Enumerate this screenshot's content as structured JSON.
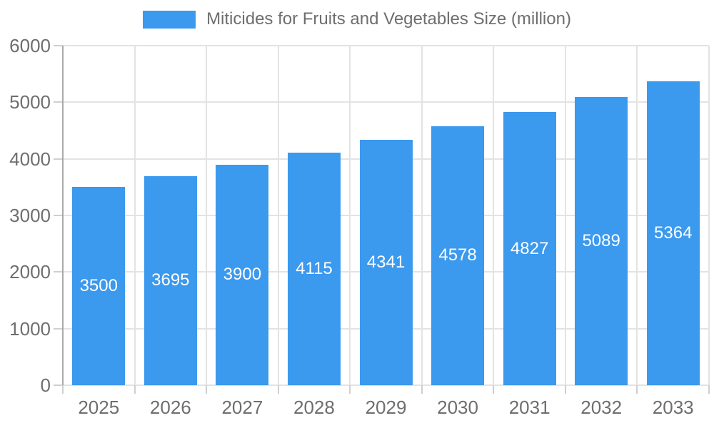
{
  "chart_data": {
    "type": "bar",
    "title": "Miticides for Fruits and Vegetables Size (million)",
    "legend_position": "top-center",
    "categories": [
      "2025",
      "2026",
      "2027",
      "2028",
      "2029",
      "2030",
      "2031",
      "2032",
      "2033"
    ],
    "values": [
      3500,
      3695,
      3900,
      4115,
      4341,
      4578,
      4827,
      5089,
      5364
    ],
    "series": [
      {
        "name": "Miticides for Fruits and Vegetables Size (million)",
        "values": [
          3500,
          3695,
          3900,
          4115,
          4341,
          4578,
          4827,
          5089,
          5364
        ]
      }
    ],
    "xlabel": "",
    "ylabel": "",
    "ylim": [
      0,
      6000
    ],
    "y_ticks": [
      0,
      1000,
      2000,
      3000,
      4000,
      5000,
      6000
    ],
    "grid": true,
    "bar_labels_inside": true,
    "colors": {
      "bar": "#3B99EE",
      "bar_label": "#FFFFFF",
      "axis_text": "#6E6E6E",
      "legend_text": "#6E6E6E",
      "gridline": "#E3E3E3",
      "axis_line": "#A9A9A9",
      "tick": "#CFCFCF",
      "background": "#FFFFFF"
    }
  }
}
